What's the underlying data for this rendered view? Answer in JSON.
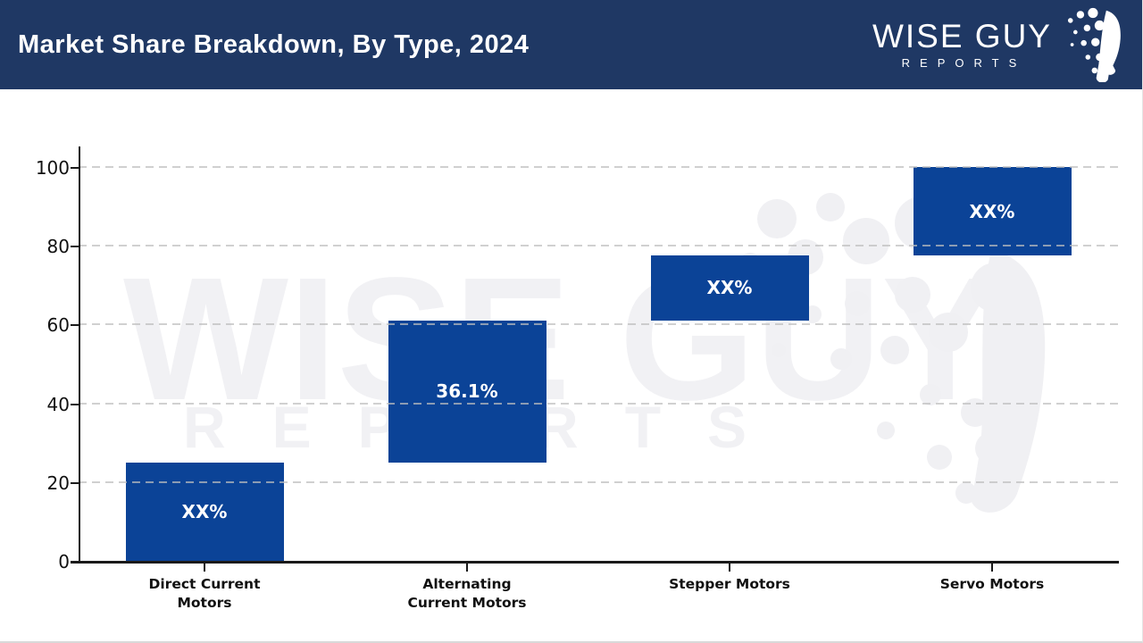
{
  "header": {
    "title": "Market Share Breakdown, By Type, 2024",
    "logo": {
      "name": "WISE GUY",
      "sub": "REPORTS"
    }
  },
  "watermark": {
    "name": "WISE GUY",
    "sub": "REPORTS"
  },
  "colors": {
    "header_bg": "#1f3864",
    "bar": "#0b4397",
    "grid": "#cccccc",
    "axis": "#111111",
    "bar_label_text": "#ffffff",
    "watermark": "#f1f1f4"
  },
  "chart_data": {
    "type": "bar",
    "subtype": "waterfall-floating-bars",
    "title": "Market Share Breakdown, By Type, 2024",
    "categories": [
      "Direct Current Motors",
      "Alternating Current Motors",
      "Stepper Motors",
      "Servo Motors"
    ],
    "category_label_lines": [
      [
        "Direct Current",
        "Motors"
      ],
      [
        "Alternating",
        "Current Motors"
      ],
      [
        "Stepper Motors"
      ],
      [
        "Servo Motors"
      ]
    ],
    "bars": [
      {
        "category": "Direct Current Motors",
        "start": 0,
        "end": 25.0,
        "value_label": "XX%"
      },
      {
        "category": "Alternating Current Motors",
        "start": 25.0,
        "end": 61.1,
        "value_label": "36.1%"
      },
      {
        "category": "Stepper Motors",
        "start": 61.1,
        "end": 77.5,
        "value_label": "XX%"
      },
      {
        "category": "Servo Motors",
        "start": 77.5,
        "end": 100.0,
        "value_label": "XX%"
      }
    ],
    "yticks": [
      0,
      20,
      40,
      60,
      80,
      100
    ],
    "ylim": [
      0,
      105.3
    ],
    "xlabel": "",
    "ylabel": "",
    "grid": "horizontal-dashed",
    "legend": "none"
  }
}
